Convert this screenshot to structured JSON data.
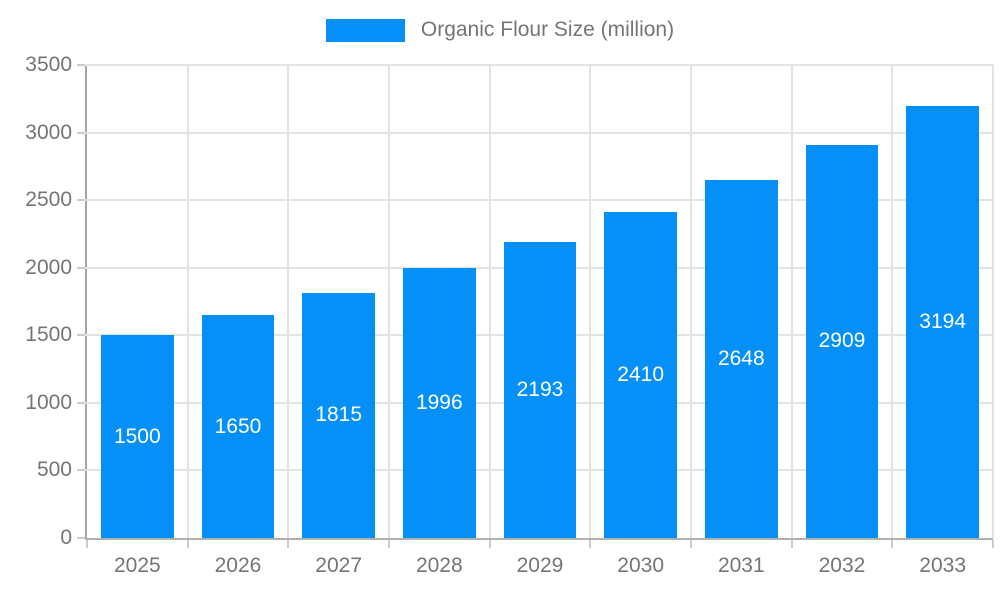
{
  "legend": {
    "label": "Organic Flour Size (million)"
  },
  "chart_data": {
    "type": "bar",
    "title": "Organic Flour Size (million)",
    "categories": [
      "2025",
      "2026",
      "2027",
      "2028",
      "2029",
      "2030",
      "2031",
      "2032",
      "2033"
    ],
    "values": [
      1500,
      1650,
      1815,
      1996,
      2193,
      2410,
      2648,
      2909,
      3194
    ],
    "series_name": "Organic Flour Size (million)",
    "xlabel": "",
    "ylabel": "",
    "ylim": [
      0,
      3500
    ],
    "yticks": [
      0,
      500,
      1000,
      1500,
      2000,
      2500,
      3000,
      3500
    ],
    "grid": true,
    "legend_position": "top-center",
    "bar_label_position": "inside-center",
    "colors": {
      "bar": "#0590f8",
      "bar_label": "#ffffff",
      "axis_text": "#757575",
      "grid_line": "#e3e3e3",
      "y_axis_line": "#a5a5a5",
      "x_axis_line": "#b0b0b0",
      "tick": "#cccccc"
    }
  }
}
